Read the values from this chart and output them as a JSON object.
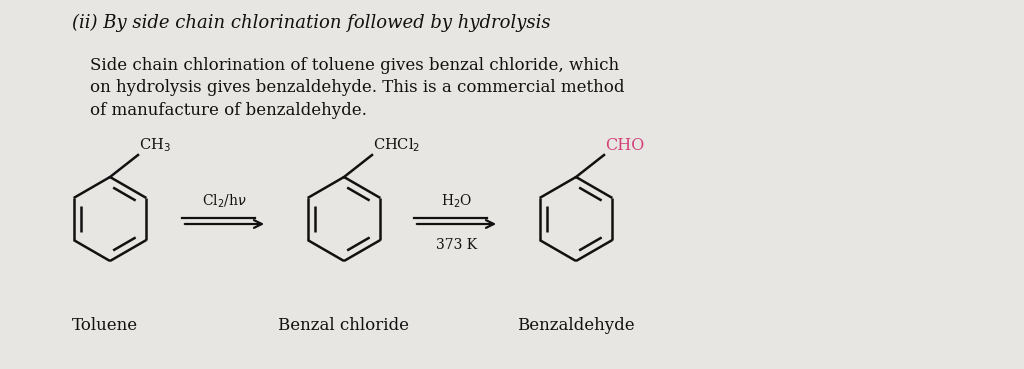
{
  "background_color": "#e8e6e2",
  "title_text": "(ii) By side chain chlorination followed by hydrolysis",
  "body_line1": "Side chain chlorination of toluene gives benzal chloride, which",
  "body_line2": "on hydrolysis gives benzaldehyde. This is a commercial method",
  "body_line3": "of manufacture of benzaldehyde.",
  "label_toluene": "Toluene",
  "label_benzal": "Benzal chloride",
  "label_benzaldehyde": "Benzaldehyde",
  "arrow1_label_top": "Cl$_2$/h$\\nu$",
  "arrow2_label_top": "H$_2$O",
  "arrow2_label_bottom": "373 K",
  "cho_color": "#d4407a",
  "text_color": "#111111",
  "title_fontsize": 13,
  "body_fontsize": 12,
  "label_fontsize": 12,
  "chem_fontsize": 10.5
}
